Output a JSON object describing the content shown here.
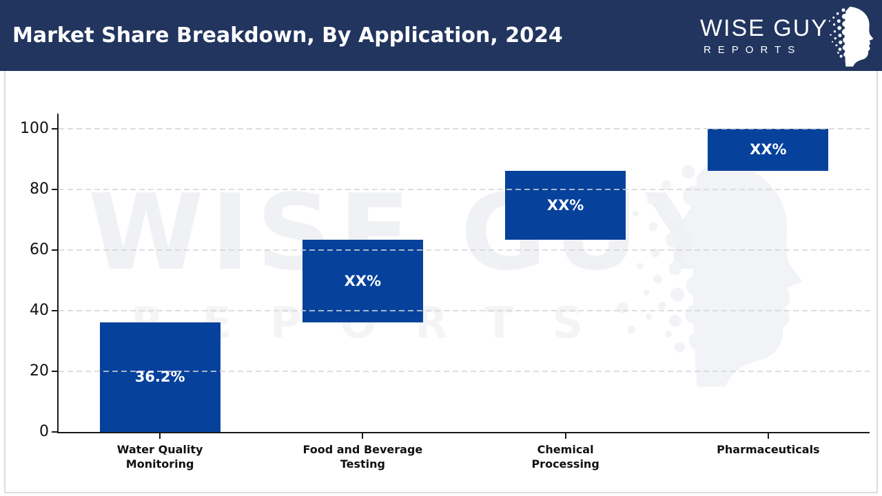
{
  "header": {
    "title": "Market Share Breakdown, By Application, 2024",
    "logo": {
      "wordmark": "WISE GUY",
      "subtext": "REPORTS"
    },
    "brand_navy": "#21355f"
  },
  "watermark": {
    "wordmark": "WISE GUY",
    "subtext": "REPORTS"
  },
  "chart_data": {
    "type": "bar",
    "subtype": "waterfall",
    "title": "Market Share Breakdown, By Application, 2024",
    "xlabel": "",
    "ylabel": "",
    "ylim": [
      0,
      100
    ],
    "yticks": [
      0,
      20,
      40,
      60,
      80,
      100
    ],
    "grid": "horizontal dashed, drawn over bars",
    "legend": "none",
    "bar_color": "#06419c",
    "label_color": "#ffffff",
    "segments": [
      {
        "category": "Water Quality Monitoring",
        "category_lines": [
          "Water Quality",
          "Monitoring"
        ],
        "start": 0,
        "end": 36.2,
        "label": "36.2%"
      },
      {
        "category": "Food and Beverage Testing",
        "category_lines": [
          "Food and Beverage",
          "Testing"
        ],
        "start": 36.2,
        "end": 63.5,
        "label": "XX%"
      },
      {
        "category": "Chemical Processing",
        "category_lines": [
          "Chemical",
          "Processing"
        ],
        "start": 63.5,
        "end": 86.2,
        "label": "XX%"
      },
      {
        "category": "Pharmaceuticals",
        "category_lines": [
          "Pharmaceuticals"
        ],
        "start": 86.2,
        "end": 100,
        "label": "XX%"
      }
    ]
  }
}
